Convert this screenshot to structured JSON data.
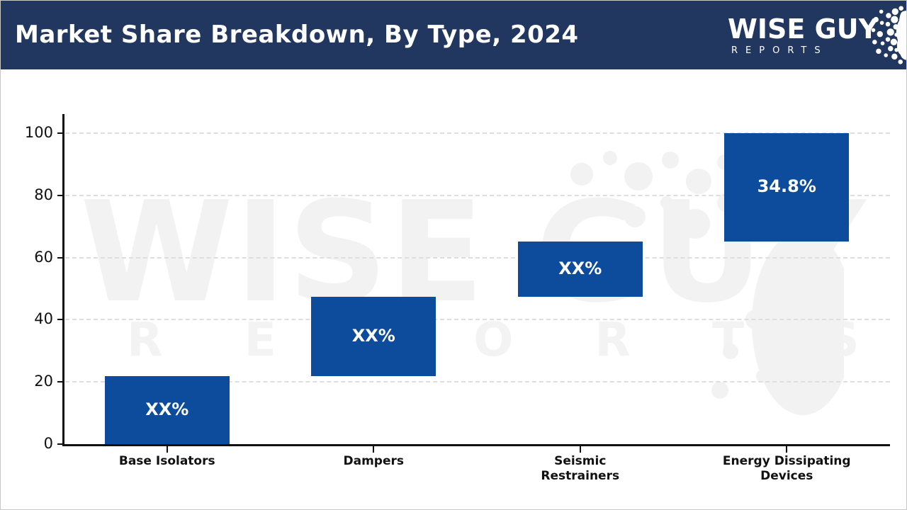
{
  "header": {
    "title": "Market Share Breakdown, By Type, 2024",
    "bg_color": "#21375f",
    "logo": {
      "wordmark": "WISE GUY",
      "sub": "REPORTS"
    }
  },
  "watermark": {
    "main": "WISE GUY",
    "sub": "R E P O R T S"
  },
  "chart_data": {
    "type": "bar",
    "subtype": "waterfall",
    "title": "Market Share Breakdown, By Type, 2024",
    "xlabel": "",
    "ylabel": "",
    "ylim": [
      0,
      100
    ],
    "yticks": [
      "0",
      "20",
      "40",
      "60",
      "80",
      "100"
    ],
    "ytick_values": [
      0,
      20,
      40,
      60,
      80,
      100
    ],
    "grid": "horizontal dashed",
    "legend": "none",
    "bar_color": "#0d4b9c",
    "value_label_color": "#ffffff",
    "categories": [
      "Base Isolators",
      "Dampers",
      "Seismic Restrainers",
      "Energy Dissipating Devices"
    ],
    "category_lines": [
      [
        "Base Isolators"
      ],
      [
        "Dampers"
      ],
      [
        "Seismic",
        "Restrainers"
      ],
      [
        "Energy Dissipating",
        "Devices"
      ]
    ],
    "segments": [
      {
        "category": "Base Isolators",
        "start": 0,
        "end": 21.8,
        "label": "XX%"
      },
      {
        "category": "Dampers",
        "start": 21.8,
        "end": 47.3,
        "label": "XX%"
      },
      {
        "category": "Seismic Restrainers",
        "start": 47.3,
        "end": 65.2,
        "label": "XX%"
      },
      {
        "category": "Energy Dissipating Devices",
        "start": 65.2,
        "end": 100,
        "label": "34.8%"
      }
    ]
  }
}
